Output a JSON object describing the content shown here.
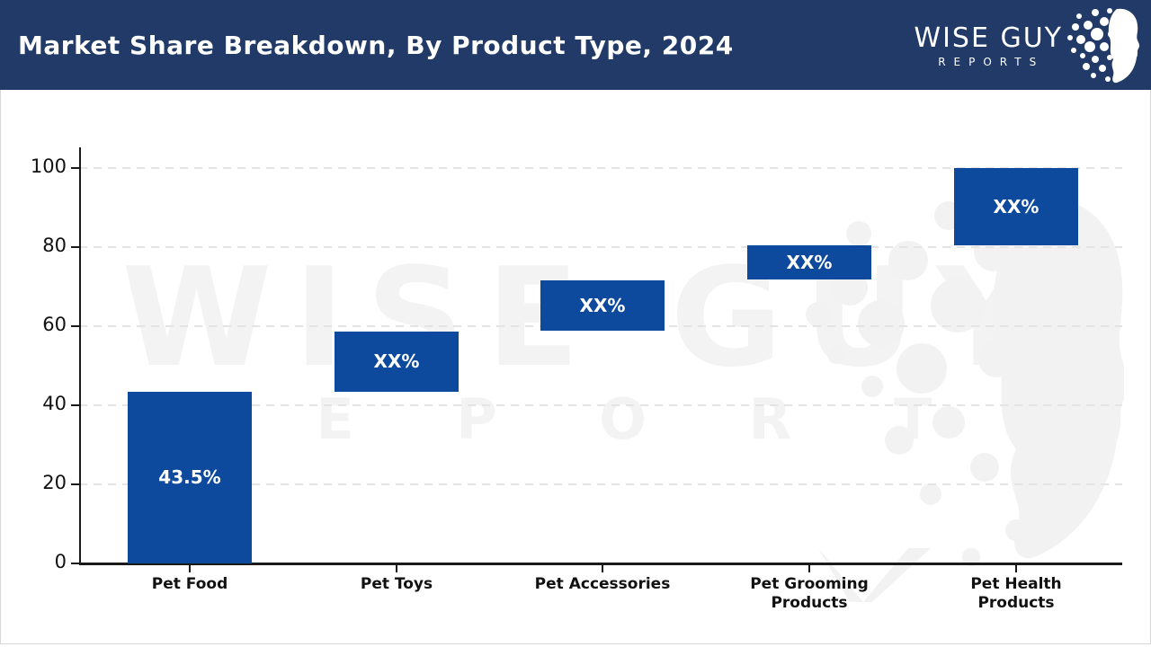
{
  "header": {
    "title": "Market Share Breakdown, By Product Type, 2024",
    "background_color": "#213A67",
    "logo": {
      "line1": "WISE GUY",
      "line2": "REPORTS"
    }
  },
  "watermark": {
    "line1": "WISE GUY",
    "line2": "R E P O R T S"
  },
  "chart_data": {
    "type": "bar",
    "variant": "waterfall",
    "title": "Market Share Breakdown, By Product Type, 2024",
    "categories": [
      "Pet Food",
      "Pet Toys",
      "Pet Accessories",
      "Pet Grooming Products",
      "Pet Health Products"
    ],
    "segments": [
      {
        "category": "Pet Food",
        "label_lines": [
          "Pet Food"
        ],
        "start": 0,
        "end": 43.5,
        "label": "43.5%"
      },
      {
        "category": "Pet Toys",
        "label_lines": [
          "Pet Toys"
        ],
        "start": 43.5,
        "end": 58.6,
        "label": "XX%"
      },
      {
        "category": "Pet Accessories",
        "label_lines": [
          "Pet Accessories"
        ],
        "start": 58.9,
        "end": 71.6,
        "label": "XX%"
      },
      {
        "category": "Pet Grooming Products",
        "label_lines": [
          "Pet Grooming",
          "Products"
        ],
        "start": 71.8,
        "end": 80.5,
        "label": "XX%"
      },
      {
        "category": "Pet Health Products",
        "label_lines": [
          "Pet Health",
          "Products"
        ],
        "start": 80.5,
        "end": 100,
        "label": "XX%"
      }
    ],
    "y_ticks": [
      0,
      20,
      40,
      60,
      80,
      100
    ],
    "ylim": [
      0,
      105
    ],
    "grid": "horizontal-dashed",
    "legend": "none",
    "bar_color": "#0D4A9D",
    "bar_label_color": "#FFFFFF",
    "axis_color": "#1a1a1a",
    "grid_color": "#e4e4e4"
  }
}
